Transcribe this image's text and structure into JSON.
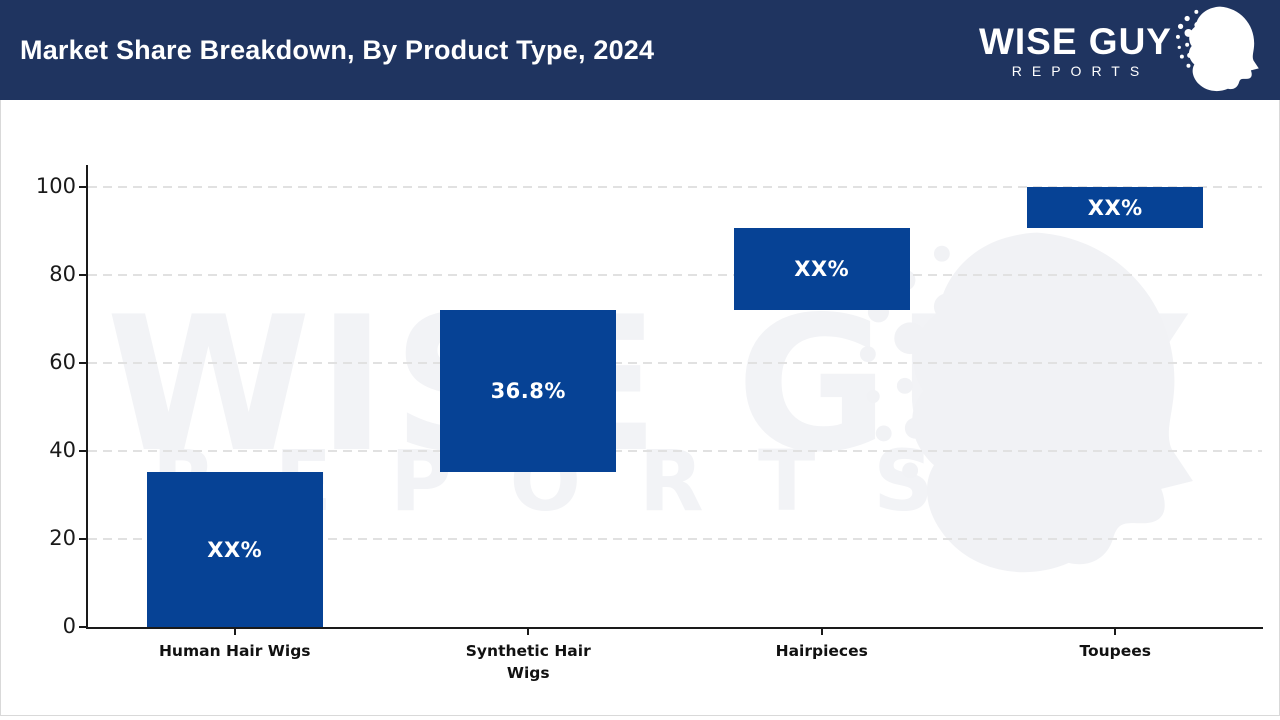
{
  "header": {
    "title": "Market Share Breakdown, By Product Type, 2024",
    "bg_color": "#1f3460",
    "logo": {
      "line1": "WISE GUY",
      "line2": "REPORTS"
    }
  },
  "watermark": {
    "line1": "WISE GUY",
    "line2": "REPORTS"
  },
  "chart_data": {
    "type": "bar",
    "subtype": "waterfall-floating-bars",
    "title": "Market Share Breakdown, By Product Type, 2024",
    "categories": [
      "Human Hair Wigs",
      "Synthetic Hair\nWigs",
      "Hairpieces",
      "Toupees"
    ],
    "segments": [
      {
        "category": "Human Hair Wigs",
        "start": 0,
        "end": 35.2,
        "label": "XX%"
      },
      {
        "category": "Synthetic Hair Wigs",
        "start": 35.2,
        "end": 72.0,
        "label": "36.8%"
      },
      {
        "category": "Hairpieces",
        "start": 72.0,
        "end": 90.6,
        "label": "XX%"
      },
      {
        "category": "Toupees",
        "start": 90.6,
        "end": 100,
        "label": "XX%"
      }
    ],
    "xlabel": "",
    "ylabel": "",
    "ylim": [
      0,
      100
    ],
    "yticks": [
      0,
      20,
      40,
      60,
      80,
      100
    ],
    "grid": "horizontal-dashed",
    "legend": "none",
    "bar_color": "#064295",
    "bar_label_color": "#ffffff"
  }
}
